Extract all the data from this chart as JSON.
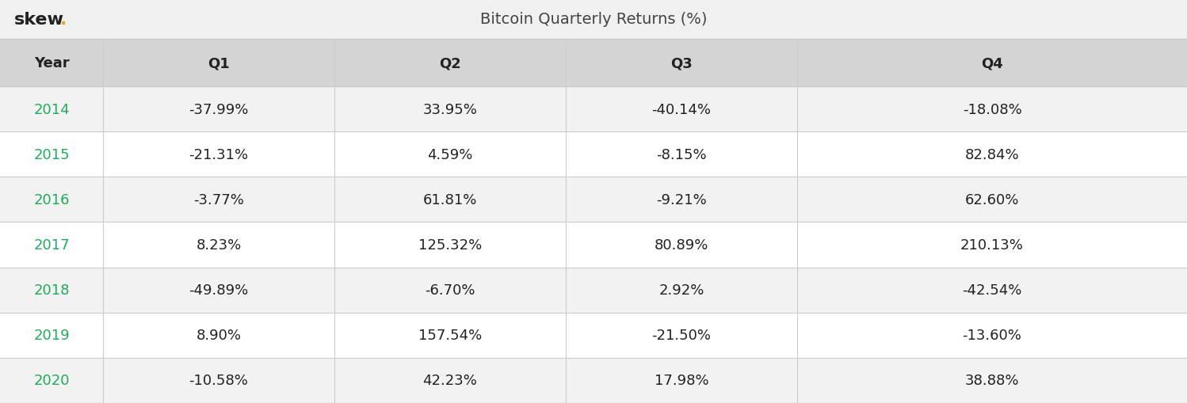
{
  "title": "Bitcoin Quarterly Returns (%)",
  "brand": "skew",
  "brand_dot_color": "#e8a317",
  "columns": [
    "Year",
    "Q1",
    "Q2",
    "Q3",
    "Q4"
  ],
  "rows": [
    [
      "2014",
      "-37.99%",
      "33.95%",
      "-40.14%",
      "-18.08%"
    ],
    [
      "2015",
      "-21.31%",
      "4.59%",
      "-8.15%",
      "82.84%"
    ],
    [
      "2016",
      "-3.77%",
      "61.81%",
      "-9.21%",
      "62.60%"
    ],
    [
      "2017",
      "8.23%",
      "125.32%",
      "80.89%",
      "210.13%"
    ],
    [
      "2018",
      "-49.89%",
      "-6.70%",
      "2.92%",
      "-42.54%"
    ],
    [
      "2019",
      "8.90%",
      "157.54%",
      "-21.50%",
      "-13.60%"
    ],
    [
      "2020",
      "-10.58%",
      "42.23%",
      "17.98%",
      "38.88%"
    ]
  ],
  "year_color": "#22ab5b",
  "header_bg": "#d4d4d4",
  "row_bg_even": "#f2f2f2",
  "row_bg_odd": "#ffffff",
  "outer_bg": "#f0f0f0",
  "title_bar_bg": "#ebebeb",
  "title_color": "#444444",
  "data_color": "#222222",
  "brand_color": "#222222",
  "line_color": "#cccccc",
  "header_font_size": 13,
  "data_font_size": 13,
  "title_font_size": 14,
  "brand_font_size": 16,
  "fig_width": 14.98,
  "fig_height": 5.1,
  "dpi": 100
}
